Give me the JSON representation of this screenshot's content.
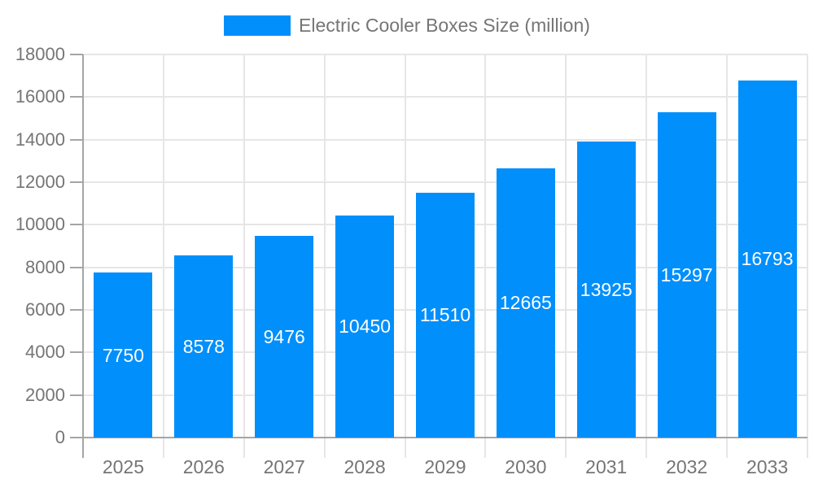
{
  "legend": {
    "label": "Electric Cooler Boxes Size (million)"
  },
  "chart_data": {
    "type": "bar",
    "title": "",
    "series_name": "Electric Cooler Boxes Size (million)",
    "categories": [
      "2025",
      "2026",
      "2027",
      "2028",
      "2029",
      "2030",
      "2031",
      "2032",
      "2033"
    ],
    "values": [
      7750,
      8578,
      9476,
      10450,
      11510,
      12665,
      13925,
      15297,
      16793
    ],
    "y_ticks": [
      0,
      2000,
      4000,
      6000,
      8000,
      10000,
      12000,
      14000,
      16000,
      18000
    ],
    "ylim": [
      0,
      18000
    ],
    "xlabel": "",
    "ylabel": "",
    "grid": true,
    "legend_position": "top-center",
    "value_labels": "inside-center",
    "colors": {
      "bar": "#008FFB",
      "value_label": "#ffffff",
      "axis_text": "#757575",
      "grid_line": "#e6e6e6",
      "axis_line": "#a5a5a5",
      "background": "#ffffff"
    }
  }
}
